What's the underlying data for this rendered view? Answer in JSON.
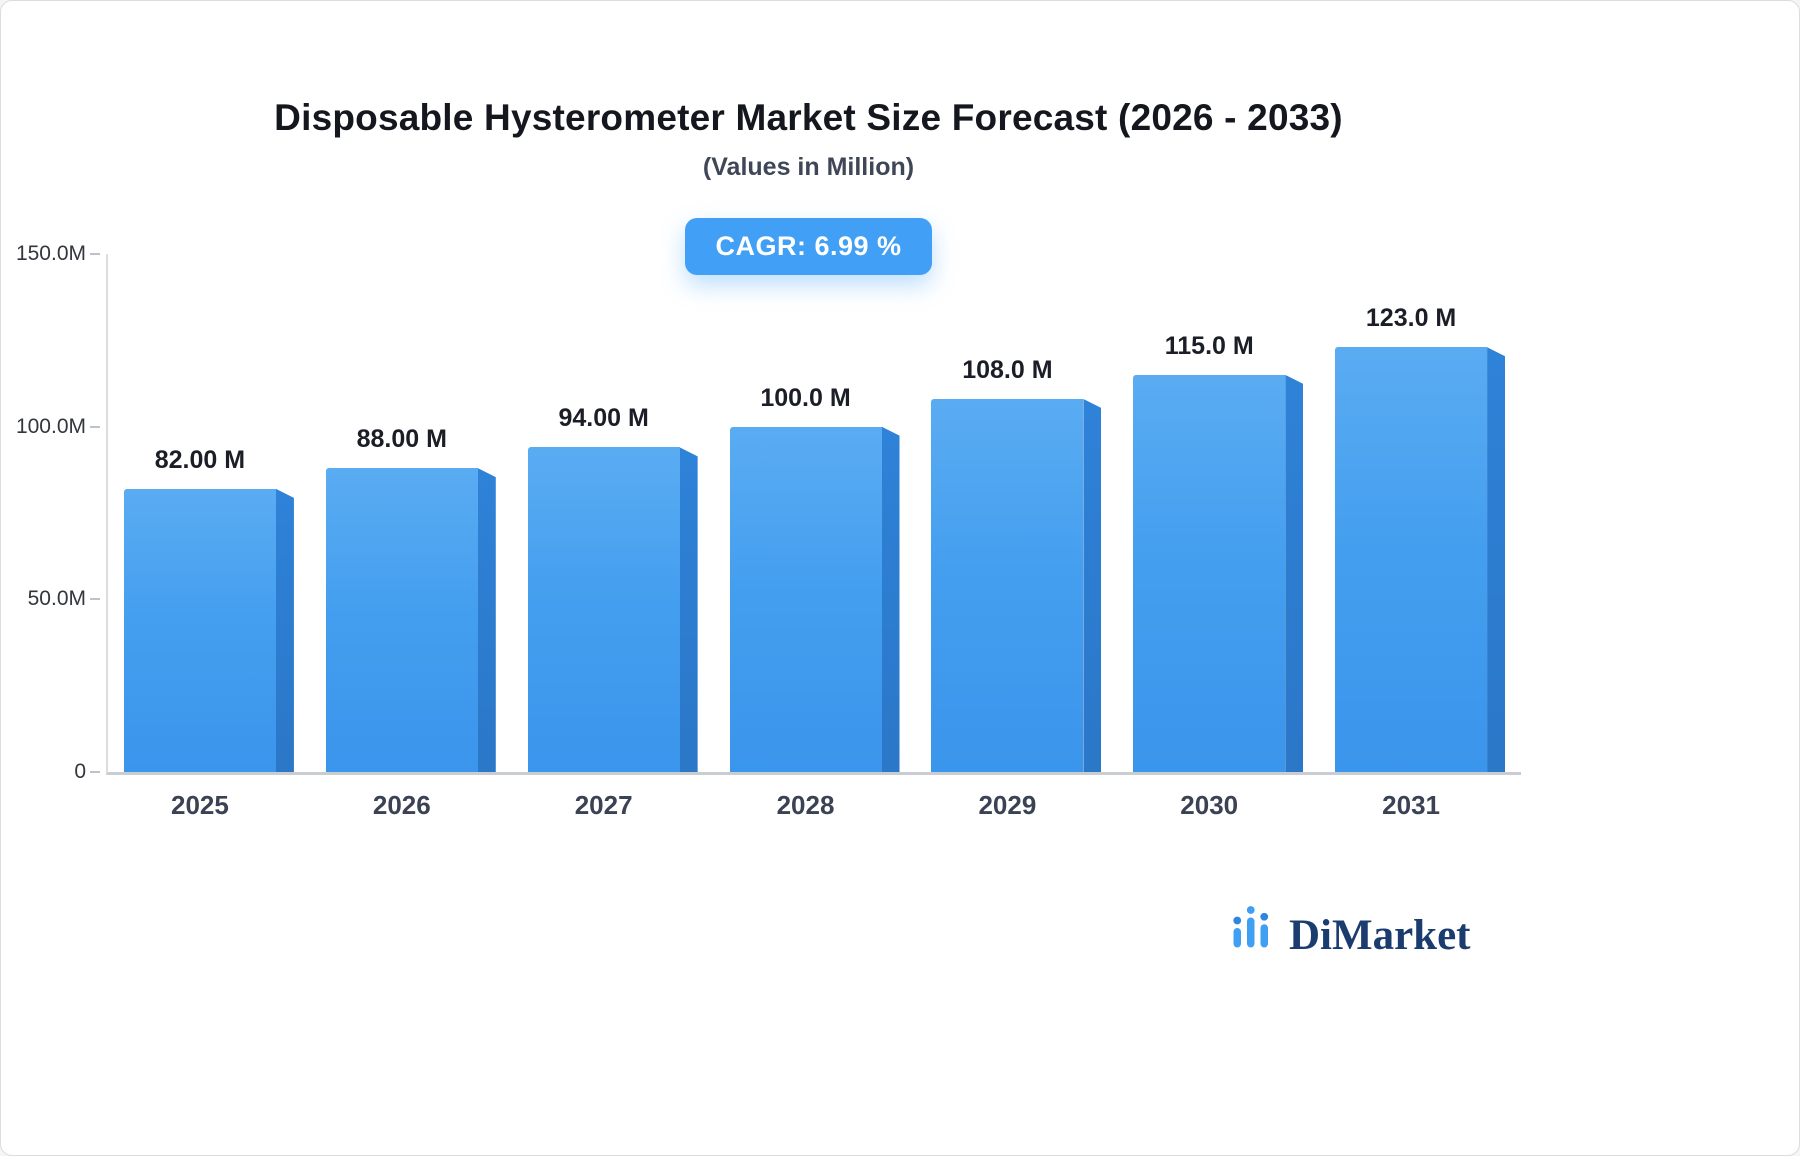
{
  "header": {
    "title": "Disposable Hysterometer Market Size Forecast (2026 - 2033)",
    "subtitle": "(Values in Million)",
    "cagr_badge": "CAGR: 6.99 %"
  },
  "chart_data": {
    "type": "bar",
    "title": "Disposable Hysterometer Market Size Forecast (2026 - 2033)",
    "subtitle": "(Values in Million)",
    "categories": [
      "2025",
      "2026",
      "2027",
      "2028",
      "2029",
      "2030",
      "2031"
    ],
    "values": [
      82,
      88,
      94,
      100,
      108,
      115,
      123
    ],
    "value_labels": [
      "82.00 M",
      "88.00 M",
      "94.00 M",
      "100.0 M",
      "108.0 M",
      "115.0 M",
      "123.0 M"
    ],
    "xlabel": "",
    "ylabel": "",
    "ylim": [
      0,
      150
    ],
    "yticks": [
      {
        "value": 0,
        "label": "0"
      },
      {
        "value": 50,
        "label": "50.0M"
      },
      {
        "value": 100,
        "label": "100.0M"
      },
      {
        "value": 150,
        "label": "150.0M"
      }
    ],
    "grid": false,
    "legend_position": "none",
    "colors": {
      "bar_face_top": "#5aacf2",
      "bar_face_bottom": "#3a95ec",
      "bar_side": "#2b77c8",
      "badge_bg": "#41a0f5",
      "badge_text": "#ffffff"
    }
  },
  "logo": {
    "text": "DiMarket",
    "icon": "bar-chart-icon",
    "text_color": "#1b3c6e",
    "icon_color": "#3f9ff2"
  }
}
